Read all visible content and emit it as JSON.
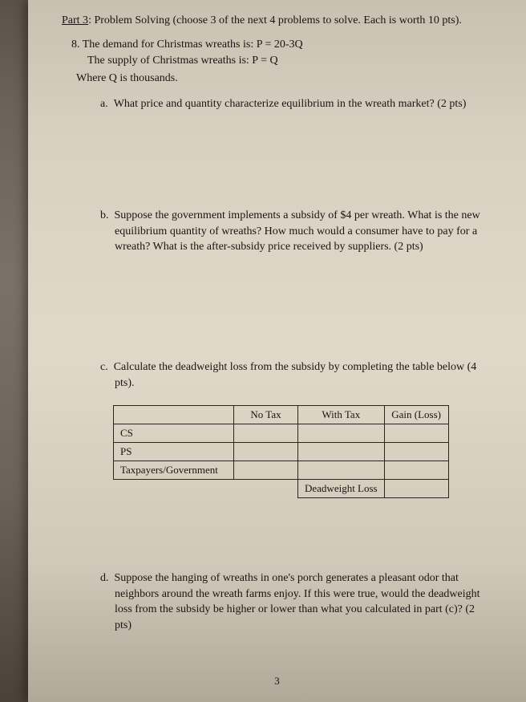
{
  "part": {
    "label": "Part 3",
    "title": ": Problem Solving (choose 3 of the next 4 problems to solve. Each is worth 10 pts)."
  },
  "problem": {
    "number": "8.",
    "line1": "The demand for Christmas wreaths is: P = 20-3Q",
    "line2": "The supply of Christmas wreaths is:   P = Q",
    "where": "Where Q is thousands."
  },
  "parts": {
    "a": {
      "label": "a.",
      "text": "What price and quantity characterize equilibrium in the wreath market?  (2 pts)"
    },
    "b": {
      "label": "b.",
      "text": "Suppose the government implements a subsidy of $4 per wreath. What is the new equilibrium quantity of wreaths? How much would a consumer have to pay for a wreath? What is the after-subsidy price received by suppliers.  (2 pts)"
    },
    "c": {
      "label": "c.",
      "text": "Calculate the deadweight loss from the subsidy by completing the table below (4 pts)."
    },
    "d": {
      "label": "d.",
      "text": "Suppose the hanging of wreaths in one's porch generates a pleasant odor that neighbors around the wreath farms enjoy. If this were true, would the deadweight loss from the subsidy be higher or lower than what you calculated in part (c)? (2 pts)"
    }
  },
  "table": {
    "headers": {
      "col1": "No Tax",
      "col2": "With Tax",
      "col3": "Gain (Loss)"
    },
    "rows": {
      "r1": "CS",
      "r2": "PS",
      "r3": "Taxpayers/Government"
    },
    "footer": "Deadweight Loss"
  },
  "pageNumber": "3"
}
